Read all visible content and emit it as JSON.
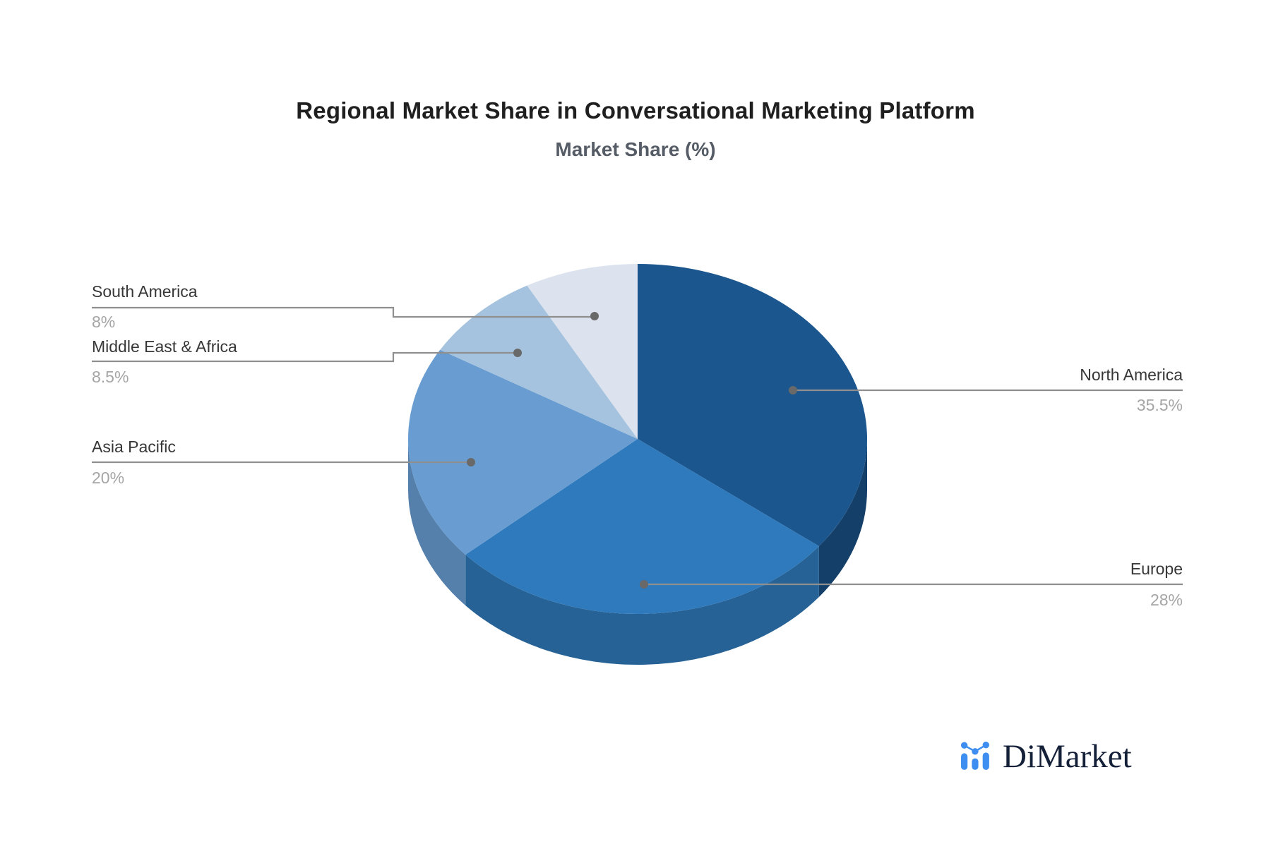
{
  "title": "Regional Market Share in Conversational Marketing Platform",
  "subtitle": "Market Share (%)",
  "logo": {
    "text": "DiMarket",
    "icon": "bar-chart-trend-icon",
    "icon_color": "#3d8ef0",
    "text_color": "#141f38"
  },
  "style": {
    "leader_line_color": "#8f8f8f",
    "leader_dot_color": "#696969",
    "label_color": "#373737",
    "percent_color": "#a5a5a5",
    "title_color": "#1f1f1f",
    "subtitle_color": "#555c66",
    "background": "#ffffff"
  },
  "chart_data": {
    "type": "pie",
    "title": "Regional Market Share in Conversational Marketing Platform",
    "subtitle": "Market Share (%)",
    "unit": "%",
    "effect": "3d-depth",
    "start_angle_deg_from_top": 0,
    "direction": "clockwise",
    "legend_position": "callout-labels",
    "slices": [
      {
        "label": "North America",
        "value": 35.5,
        "display": "35.5%",
        "color": "#1b568e",
        "side_color": "#133f69",
        "label_side": "right"
      },
      {
        "label": "Europe",
        "value": 28,
        "display": "28%",
        "color": "#2e7abd",
        "side_color": "#266295",
        "label_side": "right"
      },
      {
        "label": "Asia Pacific",
        "value": 20,
        "display": "20%",
        "color": "#699dd1",
        "side_color": "#5580ab",
        "label_side": "left"
      },
      {
        "label": "Middle East & Africa",
        "value": 8.5,
        "display": "8.5%",
        "color": "#a5c3de",
        "side_color": "#7fa3c4",
        "label_side": "left"
      },
      {
        "label": "South America",
        "value": 8,
        "display": "8%",
        "color": "#dce3ee",
        "side_color": "#b6c3d6",
        "label_side": "left"
      }
    ]
  }
}
